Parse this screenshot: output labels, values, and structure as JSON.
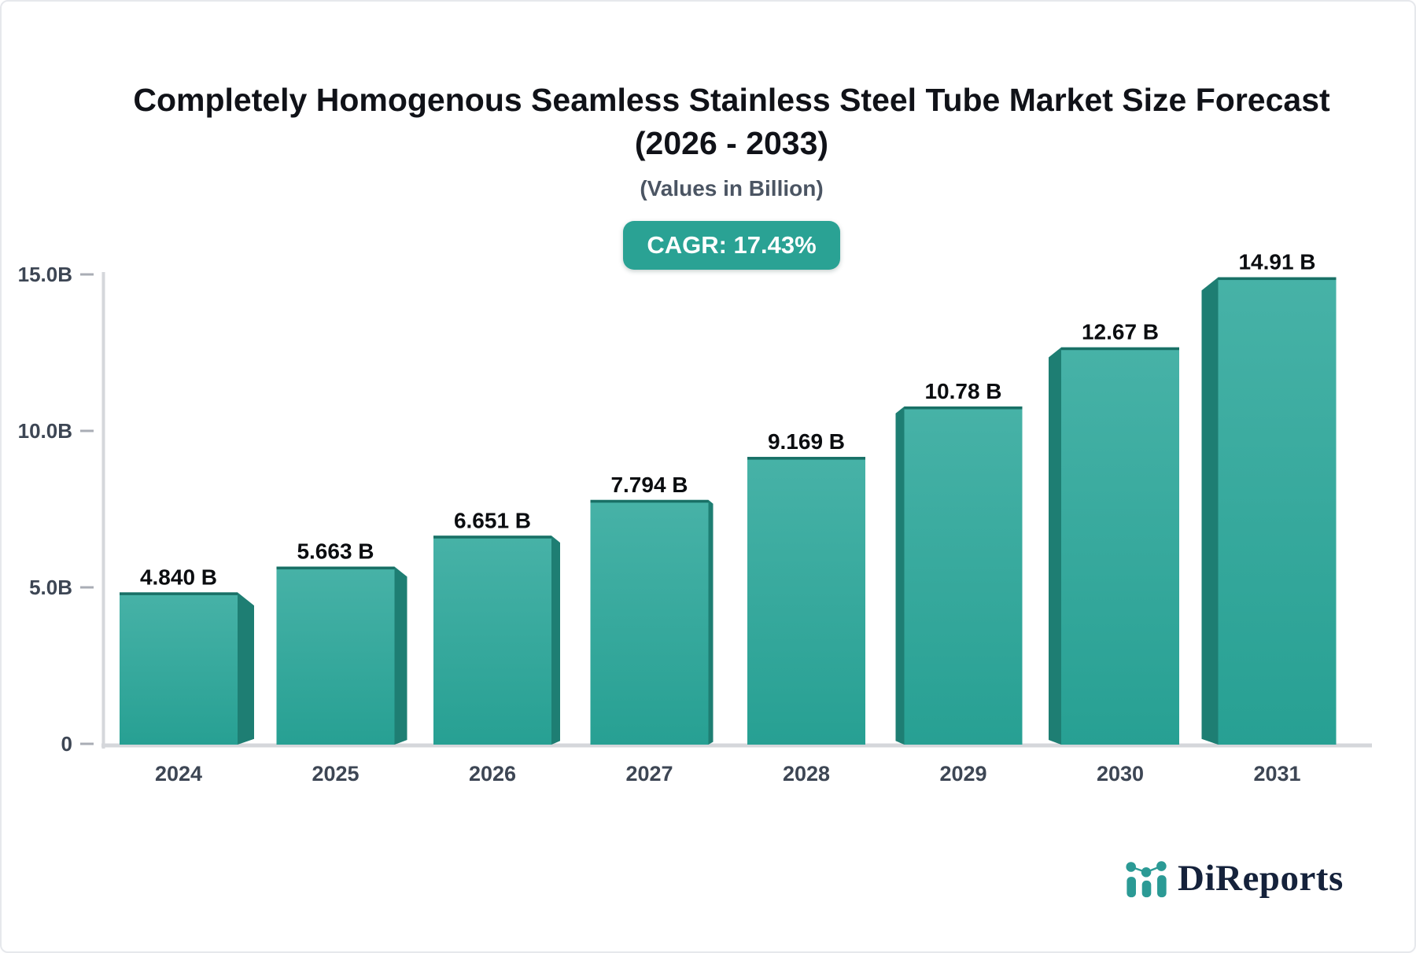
{
  "header": {
    "title_line1": "Completely Homogenous Seamless Stainless Steel Tube Market Size Forecast",
    "title_line2": "(2026 - 2033)",
    "subtitle": "(Values in Billion)",
    "badge_label": "CAGR: 17.43%",
    "badge_color": "#2aa294"
  },
  "chart_data": {
    "type": "bar",
    "title": "Completely Homogenous Seamless Stainless Steel Tube Market Size Forecast (2026 - 2033)",
    "subtitle": "(Values in Billion)",
    "cagr": "17.43%",
    "categories": [
      "2024",
      "2025",
      "2026",
      "2027",
      "2028",
      "2029",
      "2030",
      "2031"
    ],
    "values": [
      4.84,
      5.663,
      6.651,
      7.794,
      9.169,
      10.78,
      12.67,
      14.91
    ],
    "value_labels": [
      "4.840 B",
      "5.663 B",
      "6.651 B",
      "7.794 B",
      "9.169 B",
      "10.78 B",
      "12.67 B",
      "14.91 B"
    ],
    "unit": "Billion",
    "xlabel": "",
    "ylabel": "",
    "ylim": [
      0,
      15
    ],
    "y_ticks": [
      {
        "value": 0,
        "label": "0"
      },
      {
        "value": 5,
        "label": "5.0B"
      },
      {
        "value": 10,
        "label": "10.0B"
      },
      {
        "value": 15,
        "label": "15.0B"
      }
    ],
    "grid": false,
    "legend": "none",
    "bar_style": "3d-perspective",
    "bar_color_top": "#47b2a7",
    "bar_color_bottom": "#27a093",
    "bar_side_color": "#1e7e73",
    "bar_top_edge_color": "#197066",
    "axis_color": "#d5d7db",
    "tick_color": "#a9adb5",
    "label_color": "#3d4654",
    "value_label_color": "#0b0d10"
  },
  "logo": {
    "text": "DiReports",
    "icon": "bar-line-chart-icon",
    "icon_color": "#2b9a95",
    "text_color": "#15223b"
  }
}
